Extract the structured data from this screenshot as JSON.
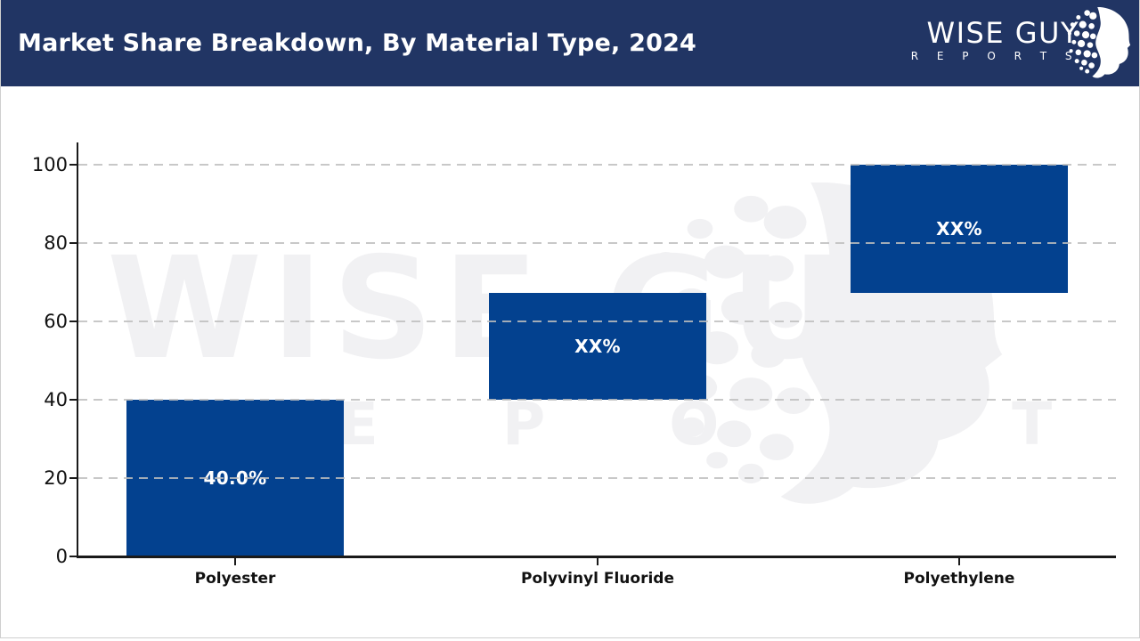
{
  "header": {
    "title": "Market Share Breakdown, By Material Type, 2024",
    "logo": {
      "line1": "WISE GUY",
      "line2": "R E P O R T S"
    }
  },
  "watermark": {
    "line1": "WISE GUY",
    "line2": "REPORTS"
  },
  "colors": {
    "header_bg": "#213564",
    "bar": "#03418f",
    "bar_label": "#ffffff",
    "gridline": "rgba(190,190,190,0.85)",
    "axis": "#1a1a1a",
    "watermark": "#f1f1f3"
  },
  "chart_data": {
    "type": "bar",
    "subtype": "floating-waterfall",
    "title": "Market Share Breakdown, By Material Type, 2024",
    "categories": [
      "Polyester",
      "Polyvinyl Fluoride",
      "Polyethylene"
    ],
    "segments": [
      {
        "category": "Polyester",
        "start": 0,
        "end": 40,
        "label": "40.0%"
      },
      {
        "category": "Polyvinyl Fluoride",
        "start": 40,
        "end": 67.3,
        "label": "XX%"
      },
      {
        "category": "Polyethylene",
        "start": 67.3,
        "end": 100,
        "label": "XX%"
      }
    ],
    "xlabel": "",
    "ylabel": "",
    "yticks": [
      0,
      20,
      40,
      60,
      80,
      100
    ],
    "ylim": [
      0,
      105
    ],
    "grid": "dashed-horizontal-on-top",
    "legend": "none"
  }
}
